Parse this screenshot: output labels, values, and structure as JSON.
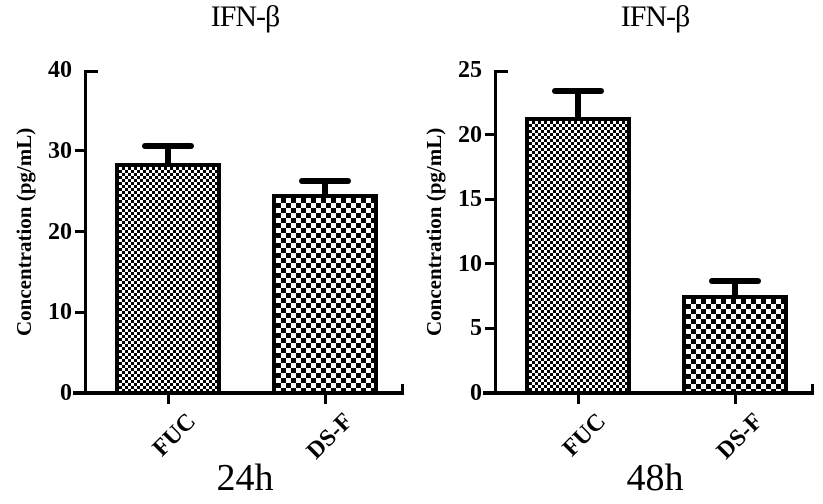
{
  "figure": {
    "background": "#ffffff",
    "ink": "#000000"
  },
  "chart_data": [
    {
      "type": "bar",
      "title": "IFN-β",
      "ylabel": "Concentration (pg/mL)",
      "xlabel": "24h",
      "categories": [
        "FUC",
        "DS-F"
      ],
      "values": [
        28.5,
        24.6
      ],
      "errors_upper": [
        2.1,
        1.6
      ],
      "ylim": [
        0,
        40
      ],
      "yticks": [
        0,
        10,
        20,
        30,
        40
      ],
      "bar_patterns": [
        "fine-checker",
        "coarse-checker"
      ],
      "bar_fill": "#ffffff",
      "bar_outline": "#000000",
      "grid": false,
      "legend": "none"
    },
    {
      "type": "bar",
      "title": "IFN-β",
      "ylabel": "Concentration (pg/mL)",
      "xlabel": "48h",
      "categories": [
        "FUC",
        "DS-F"
      ],
      "values": [
        21.4,
        7.6
      ],
      "errors_upper": [
        2.0,
        1.1
      ],
      "ylim": [
        0,
        25
      ],
      "yticks": [
        0,
        5,
        10,
        15,
        20,
        25
      ],
      "bar_patterns": [
        "fine-checker",
        "coarse-checker"
      ],
      "bar_fill": "#ffffff",
      "bar_outline": "#000000",
      "grid": false,
      "legend": "none"
    }
  ]
}
